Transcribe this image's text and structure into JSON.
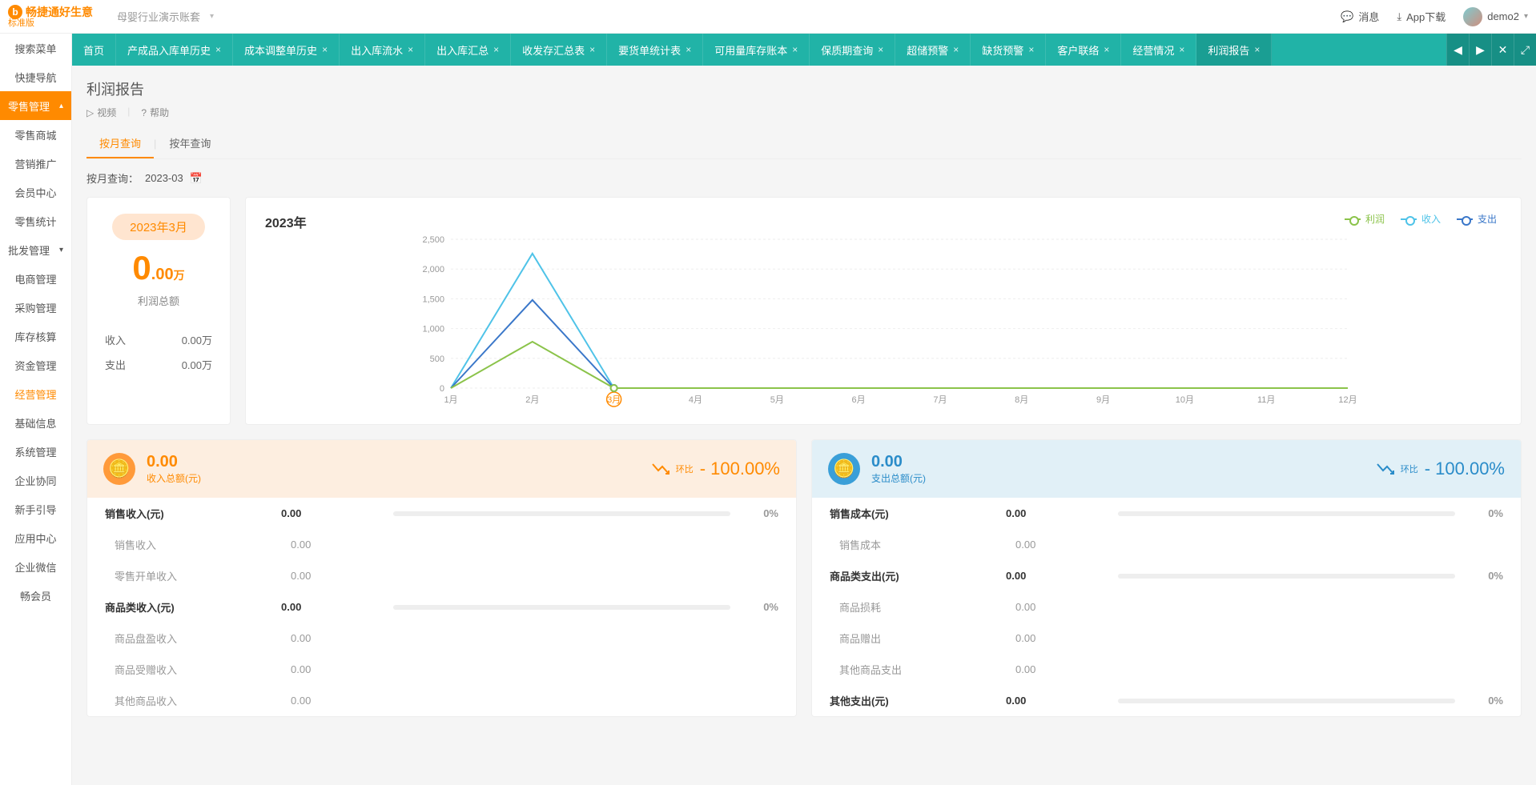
{
  "brand": {
    "name": "畅捷通好生意",
    "edition": "标准版"
  },
  "account_selector": "母婴行业演示账套",
  "top_right": {
    "msg": "消息",
    "app": "App下载",
    "user": "demo2"
  },
  "left_nav": {
    "search": "搜索菜单",
    "quick": "快捷导航",
    "retail": "零售管理",
    "retail_sub": [
      "零售商城",
      "营销推广",
      "会员中心",
      "零售统计"
    ],
    "wholesale": "批发管理",
    "rest": [
      "电商管理",
      "采购管理",
      "库存核算",
      "资金管理"
    ],
    "biz": "经营管理",
    "rest2": [
      "基础信息",
      "系统管理",
      "企业协同",
      "新手引导",
      "应用中心",
      "企业微信",
      "畅会员"
    ]
  },
  "tabs": [
    "首页",
    "产成品入库单历史",
    "成本调整单历史",
    "出入库流水",
    "出入库汇总",
    "收发存汇总表",
    "要货单统计表",
    "可用量库存账本",
    "保质期查询",
    "超储预警",
    "缺货预警",
    "客户联络",
    "经营情况",
    "利润报告"
  ],
  "page": {
    "title": "利润报告",
    "video": "视频",
    "help": "帮助",
    "qtab_month": "按月查询",
    "qtab_year": "按年查询",
    "q_label": "按月查询：",
    "q_date": "2023-03"
  },
  "summary": {
    "period": "2023年3月",
    "profit_int": "0",
    "profit_dec": ".00",
    "profit_unit": "万",
    "profit_lbl": "利润总额",
    "in_lbl": "收入",
    "in_val": "0.00万",
    "out_lbl": "支出",
    "out_val": "0.00万"
  },
  "chart": {
    "title": "2023年",
    "legend": {
      "profit": "利润",
      "income": "收入",
      "expense": "支出"
    },
    "colors": {
      "profit": "#8bc34a",
      "income": "#4fc3e8",
      "expense": "#3a77c9"
    },
    "bg": "#ffffff",
    "grid": "#eeeeee",
    "x_labels": [
      "1月",
      "2月",
      "3月",
      "4月",
      "5月",
      "6月",
      "7月",
      "8月",
      "9月",
      "10月",
      "11月",
      "12月"
    ],
    "y_ticks": [
      0,
      500,
      1000,
      1500,
      2000,
      2500
    ],
    "ylim": [
      0,
      2500
    ],
    "series": {
      "profit": [
        0,
        780,
        0,
        0,
        0,
        0,
        0,
        0,
        0,
        0,
        0,
        0
      ],
      "income": [
        0,
        2260,
        0,
        0,
        0,
        0,
        0,
        0,
        0,
        0,
        0,
        0
      ],
      "expense": [
        0,
        1480,
        0,
        0,
        0,
        0,
        0,
        0,
        0,
        0,
        0,
        0
      ]
    }
  },
  "income_panel": {
    "total_val": "0.00",
    "total_lbl": "收入总额(元)",
    "delta": "- 100.00%",
    "hb": "环比",
    "rows": [
      {
        "lbl": "销售收入(元)",
        "val": "0.00",
        "pct": "0%",
        "bold": true
      },
      {
        "lbl": "销售收入",
        "val": "0.00",
        "sub": true
      },
      {
        "lbl": "零售开单收入",
        "val": "0.00",
        "sub": true
      },
      {
        "lbl": "商品类收入(元)",
        "val": "0.00",
        "pct": "0%",
        "bold": true
      },
      {
        "lbl": "商品盘盈收入",
        "val": "0.00",
        "sub": true
      },
      {
        "lbl": "商品受赠收入",
        "val": "0.00",
        "sub": true
      },
      {
        "lbl": "其他商品收入",
        "val": "0.00",
        "sub": true
      }
    ]
  },
  "expense_panel": {
    "total_val": "0.00",
    "total_lbl": "支出总额(元)",
    "delta": "- 100.00%",
    "hb": "环比",
    "rows": [
      {
        "lbl": "销售成本(元)",
        "val": "0.00",
        "pct": "0%",
        "bold": true
      },
      {
        "lbl": "销售成本",
        "val": "0.00",
        "sub": true
      },
      {
        "lbl": "商品类支出(元)",
        "val": "0.00",
        "pct": "0%",
        "bold": true
      },
      {
        "lbl": "商品损耗",
        "val": "0.00",
        "sub": true
      },
      {
        "lbl": "商品赠出",
        "val": "0.00",
        "sub": true
      },
      {
        "lbl": "其他商品支出",
        "val": "0.00",
        "sub": true
      },
      {
        "lbl": "其他支出(元)",
        "val": "0.00",
        "pct": "0%",
        "bold": true
      }
    ]
  }
}
